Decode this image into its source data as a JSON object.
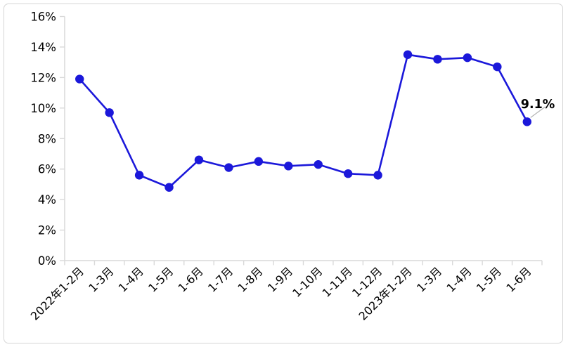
{
  "chart_data": {
    "type": "line",
    "title": "",
    "xlabel": "",
    "ylabel": "",
    "categories": [
      "2022年1-2月",
      "1-3月",
      "1-4月",
      "1-5月",
      "1-6月",
      "1-7月",
      "1-8月",
      "1-9月",
      "1-10月",
      "1-11月",
      "1-12月",
      "2023年1-2月",
      "1-3月",
      "1-4月",
      "1-5月",
      "1-6月"
    ],
    "values": [
      11.9,
      9.7,
      5.6,
      4.8,
      6.6,
      6.1,
      6.5,
      6.2,
      6.3,
      5.7,
      5.6,
      13.5,
      13.2,
      13.3,
      12.7,
      9.1
    ],
    "ylim": [
      0,
      16
    ],
    "ytick_step": 2,
    "yticks": [
      "0%",
      "2%",
      "4%",
      "6%",
      "8%",
      "10%",
      "12%",
      "14%",
      "16%"
    ],
    "grid": false,
    "legend": "none",
    "x_label_rotation": -45,
    "annotation": {
      "index": 15,
      "text": "9.1%"
    },
    "colors": {
      "line": "#1b18da",
      "marker": "#1b18da",
      "axis": "#d9d9d9",
      "tick_label": "#000000",
      "annotation_text": "#000000",
      "leader_line": "#b3b3b3",
      "background": "#ffffff",
      "border": "#d6d6d6"
    }
  }
}
